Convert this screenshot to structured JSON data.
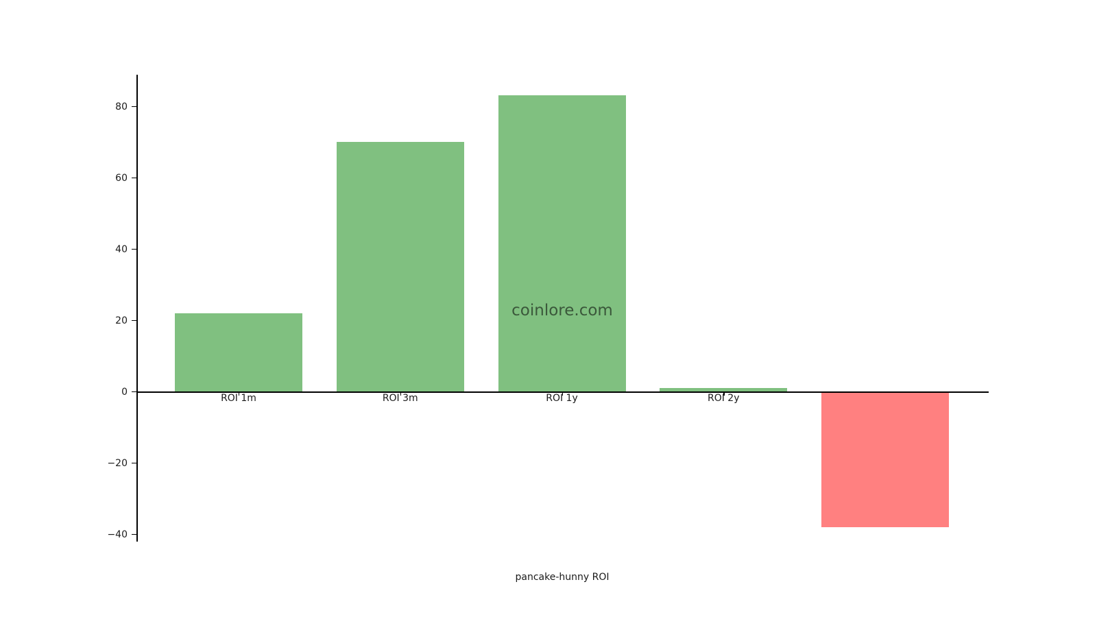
{
  "chart_data": {
    "type": "bar",
    "title": "pancake-hunny ROI",
    "watermark": "coinlore.com",
    "categories": [
      "ROI 1m",
      "ROI 3m",
      "ROI 1y",
      "ROI 2y",
      ""
    ],
    "values": [
      22,
      70,
      83,
      1,
      -38
    ],
    "yticks": [
      {
        "value": 80,
        "label": "80"
      },
      {
        "value": 60,
        "label": "60"
      },
      {
        "value": 40,
        "label": "40"
      },
      {
        "value": 20,
        "label": "20"
      },
      {
        "value": 0,
        "label": "0"
      },
      {
        "value": -20,
        "label": "−20"
      },
      {
        "value": -40,
        "label": "−40"
      }
    ],
    "ylim": [
      -43,
      89
    ],
    "xlabel": "pancake-hunny ROI",
    "ylabel": "",
    "grid": false,
    "legend": "none",
    "colors": {
      "positive_bar": "#80c080",
      "negative_bar": "#ff8080",
      "axis": "#000000",
      "text": "#1a1a1a",
      "watermark_text": "rgba(0,0,0,0.55)",
      "background": "#ffffff"
    }
  }
}
